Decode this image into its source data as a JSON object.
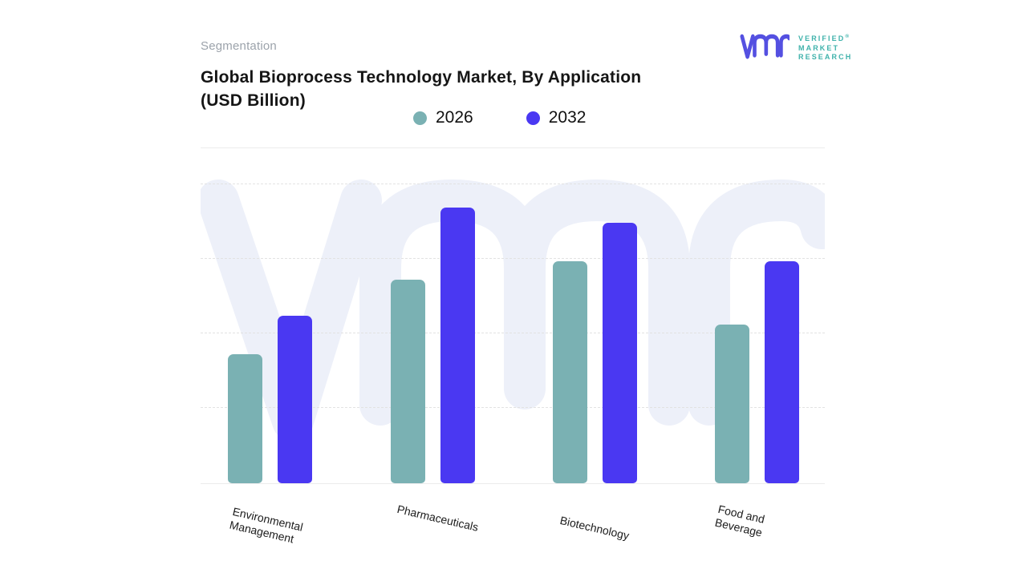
{
  "page": {
    "background": "#FFFFFF"
  },
  "header": {
    "eyebrow": "Segmentation",
    "title_lines": [
      "Global Bioprocess Technology Market, By Application",
      "(USD Billion)"
    ],
    "logo": {
      "mark_icon": "vmr-monogram-icon",
      "lines": [
        "VERIFIED",
        "MARKET",
        "RESEARCH"
      ],
      "registered": "®",
      "mark_color": "#5450E1",
      "text_color": "#3FB2AB"
    }
  },
  "chart_data": {
    "type": "bar",
    "title": "Global Bioprocess Technology Market, By Application (USD Billion)",
    "categories": [
      "Environmental Management",
      "Pharmaceuticals",
      "Biotechnology",
      "Food and Beverage"
    ],
    "series": [
      {
        "name": "2026",
        "color": "#7AB1B3",
        "values": [
          43,
          68,
          74,
          53
        ]
      },
      {
        "name": "2032",
        "color": "#4A38F2",
        "values": [
          56,
          92,
          87,
          74
        ]
      }
    ],
    "xlabel": "",
    "ylabel": "",
    "ylim": [
      0,
      100
    ],
    "y_tick_labels_visible": false,
    "gridlines": {
      "horizontal": true,
      "style": "dashed",
      "interval": 25
    },
    "legend_position": "top-center",
    "watermark_icon": "vmr-monogram-watermark"
  },
  "colors": {
    "grid": "#E2E2E2",
    "baseline": "#ECECEC",
    "axis_label": "#1C1C1C",
    "eyebrow": "#9CA3AB",
    "title": "#151515"
  }
}
